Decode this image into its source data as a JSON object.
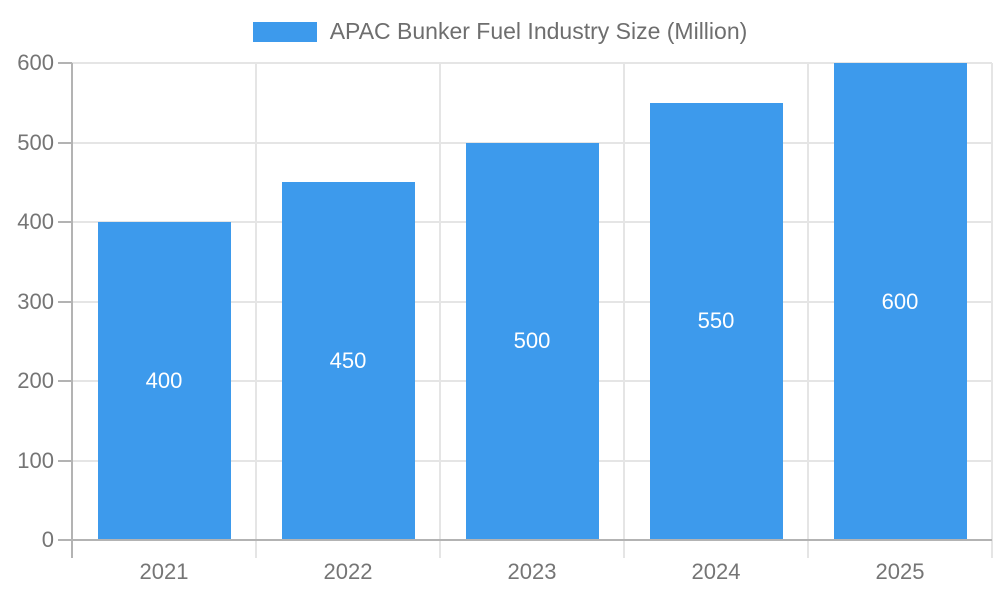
{
  "legend": {
    "items": [
      {
        "label": "APAC Bunker Fuel Industry Size (Million)",
        "color": "#3D9AEC"
      }
    ],
    "position": "top-center"
  },
  "chart_data": {
    "type": "bar",
    "title": "APAC Bunker Fuel Industry Size (Million)",
    "categories": [
      "2021",
      "2022",
      "2023",
      "2024",
      "2025"
    ],
    "series": [
      {
        "name": "APAC Bunker Fuel Industry Size (Million)",
        "values": [
          400,
          450,
          500,
          550,
          600
        ]
      }
    ],
    "values": [
      400,
      450,
      500,
      550,
      600
    ],
    "bar_labels": [
      400,
      450,
      500,
      550,
      600
    ],
    "xlabel": "",
    "ylabel": "",
    "ylim": [
      0,
      600
    ],
    "yticks": [
      0,
      100,
      200,
      300,
      400,
      500,
      600
    ],
    "grid": true,
    "legend_position": "top-center",
    "colors": {
      "bar": "#3D9AEC",
      "bar_label_text": "#FFFFFF",
      "axis_line": "#B3B3B3",
      "grid_line": "#E5E5E5",
      "tick_text": "#757575",
      "legend_text": "#6E6E6E"
    }
  }
}
